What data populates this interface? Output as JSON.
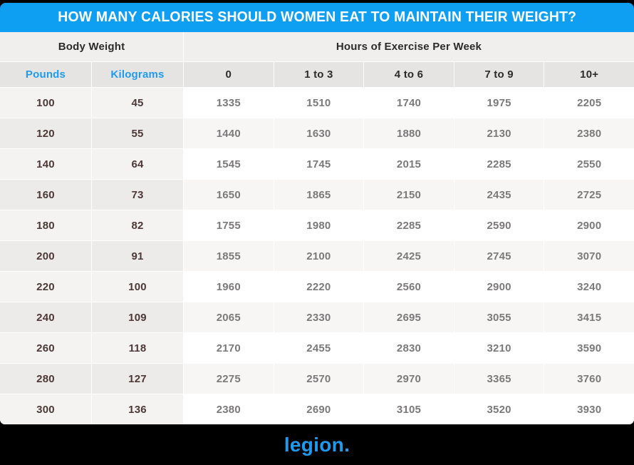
{
  "title": "HOW MANY CALORIES SHOULD WOMEN EAT TO MAINTAIN THEIR WEIGHT?",
  "chart_data": {
    "type": "table",
    "title": "HOW MANY CALORIES SHOULD WOMEN EAT TO MAINTAIN THEIR WEIGHT?",
    "column_groups": [
      "Body Weight",
      "Hours of Exercise Per Week"
    ],
    "columns": [
      "Pounds",
      "Kilograms",
      "0",
      "1 to 3",
      "4 to 6",
      "7 to 9",
      "10+"
    ],
    "rows": [
      [
        "100",
        "45",
        "1335",
        "1510",
        "1740",
        "1975",
        "2205"
      ],
      [
        "120",
        "55",
        "1440",
        "1630",
        "1880",
        "2130",
        "2380"
      ],
      [
        "140",
        "64",
        "1545",
        "1745",
        "2015",
        "2285",
        "2550"
      ],
      [
        "160",
        "73",
        "1650",
        "1865",
        "2150",
        "2435",
        "2725"
      ],
      [
        "180",
        "82",
        "1755",
        "1980",
        "2285",
        "2590",
        "2900"
      ],
      [
        "200",
        "91",
        "1855",
        "2100",
        "2425",
        "2745",
        "3070"
      ],
      [
        "220",
        "100",
        "1960",
        "2220",
        "2560",
        "2900",
        "3240"
      ],
      [
        "240",
        "109",
        "2065",
        "2330",
        "2695",
        "3055",
        "3415"
      ],
      [
        "260",
        "118",
        "2170",
        "2455",
        "2830",
        "3210",
        "3590"
      ],
      [
        "280",
        "127",
        "2275",
        "2570",
        "2970",
        "3365",
        "3760"
      ],
      [
        "300",
        "136",
        "2380",
        "2690",
        "3105",
        "3520",
        "3930"
      ]
    ]
  },
  "footer": {
    "logo": "legion."
  },
  "colors": {
    "page_bg": "#000000",
    "title_bar_bg": "#0f9ff2",
    "title_text": "#ffffff",
    "accent_blue": "#1e9bf0",
    "header1_bg": "#f0efee",
    "header2_bg": "#e5e4e3",
    "header_text": "#2d2a2a",
    "bw_odd_bg": "#f4f3f1",
    "bw_even_bg": "#edebe9",
    "cal_odd_bg": "#ffffff",
    "cal_even_bg": "#f7f6f5",
    "bw_text": "#4c3836",
    "cal_text": "#7b797a",
    "divider": "#ffffff"
  }
}
